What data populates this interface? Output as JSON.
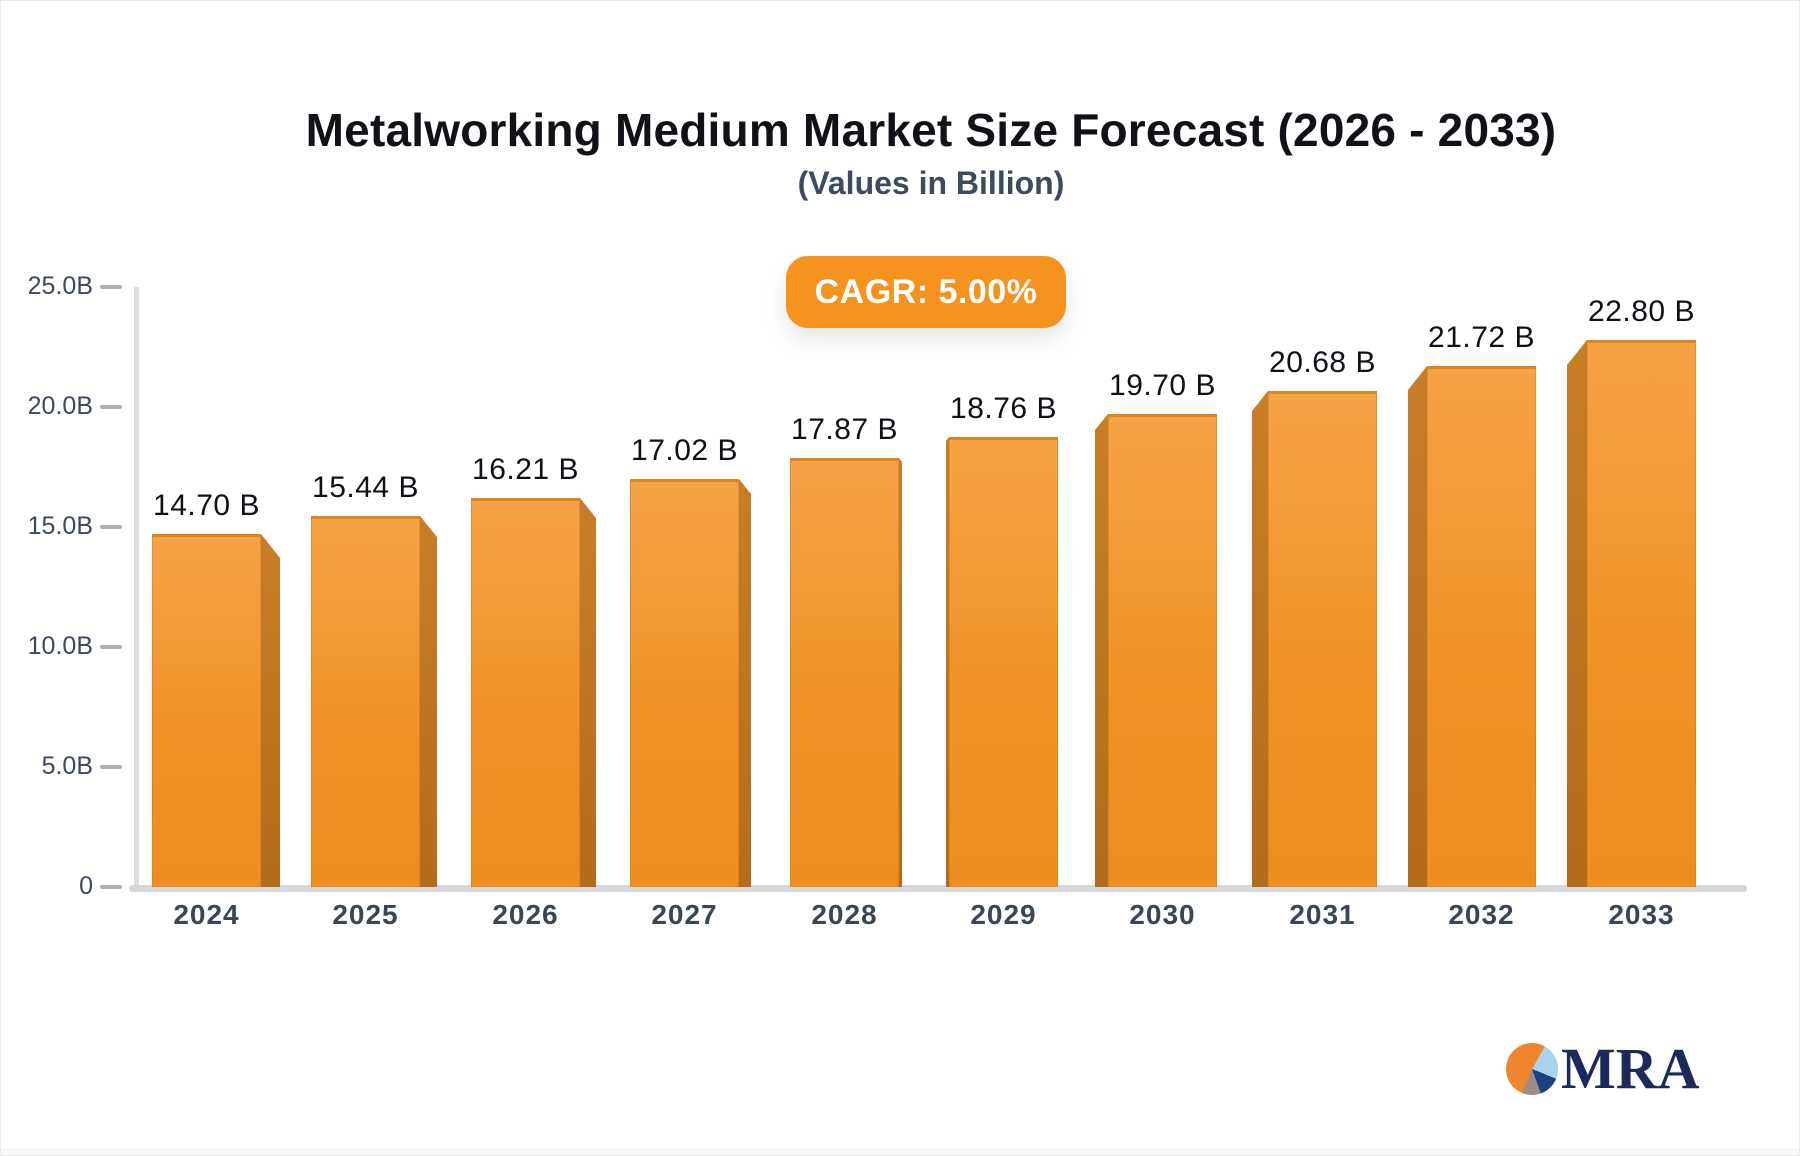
{
  "title": "Metalworking Medium Market Size Forecast (2026 - 2033)",
  "subtitle": "(Values in Billion)",
  "badge": {
    "label": "CAGR: 5.00%"
  },
  "chart_data": {
    "type": "bar",
    "title": "Metalworking Medium Market Size Forecast (2026 - 2033)",
    "subtitle": "(Values in Billion)",
    "unit": "Billion",
    "categories": [
      "2024",
      "2025",
      "2026",
      "2027",
      "2028",
      "2029",
      "2030",
      "2031",
      "2032",
      "2033"
    ],
    "values": [
      14.7,
      15.44,
      16.21,
      17.02,
      17.87,
      18.76,
      19.7,
      20.68,
      21.72,
      22.8
    ],
    "value_labels": [
      "14.70 B",
      "15.44 B",
      "16.21 B",
      "17.02 B",
      "17.87 B",
      "18.76 B",
      "19.70 B",
      "20.68 B",
      "21.72 B",
      "22.80 B"
    ],
    "cagr_label": "CAGR: 5.00%",
    "xlabel": "",
    "ylabel": "",
    "ylim": [
      0,
      25
    ],
    "y_tick_values": [
      25,
      20,
      15,
      10,
      5,
      0
    ],
    "y_tick_labels": [
      "25.0B",
      "20.0B",
      "15.0B",
      "10.0B",
      "5.0B",
      "0"
    ],
    "grid": false,
    "legend": false,
    "bar_style": "3d-perspective"
  },
  "colors": {
    "badge_bg": "#F6921E",
    "badge_text": "#FFFFFF",
    "bar_top": "#F5A347",
    "bar_bottom": "#F08D20",
    "bar_side": "#BE741F",
    "axis_line": "#DBDDE0",
    "baseline": "#D5D7DA",
    "tick": "#AAB0B7",
    "axis_label_color": "#3C4A5B",
    "x_label_color": "#3A4656",
    "value_label_color": "#0E1116",
    "title_color": "#101218",
    "subtitle_color": "#3E4A5E",
    "logo_navy": "#1B2A5A",
    "logo_orange": "#F0862B",
    "logo_lightblue": "#A8D2EE",
    "logo_blue": "#1F4080",
    "logo_gray": "#9B8C85"
  },
  "logo": {
    "text": "MRA"
  }
}
